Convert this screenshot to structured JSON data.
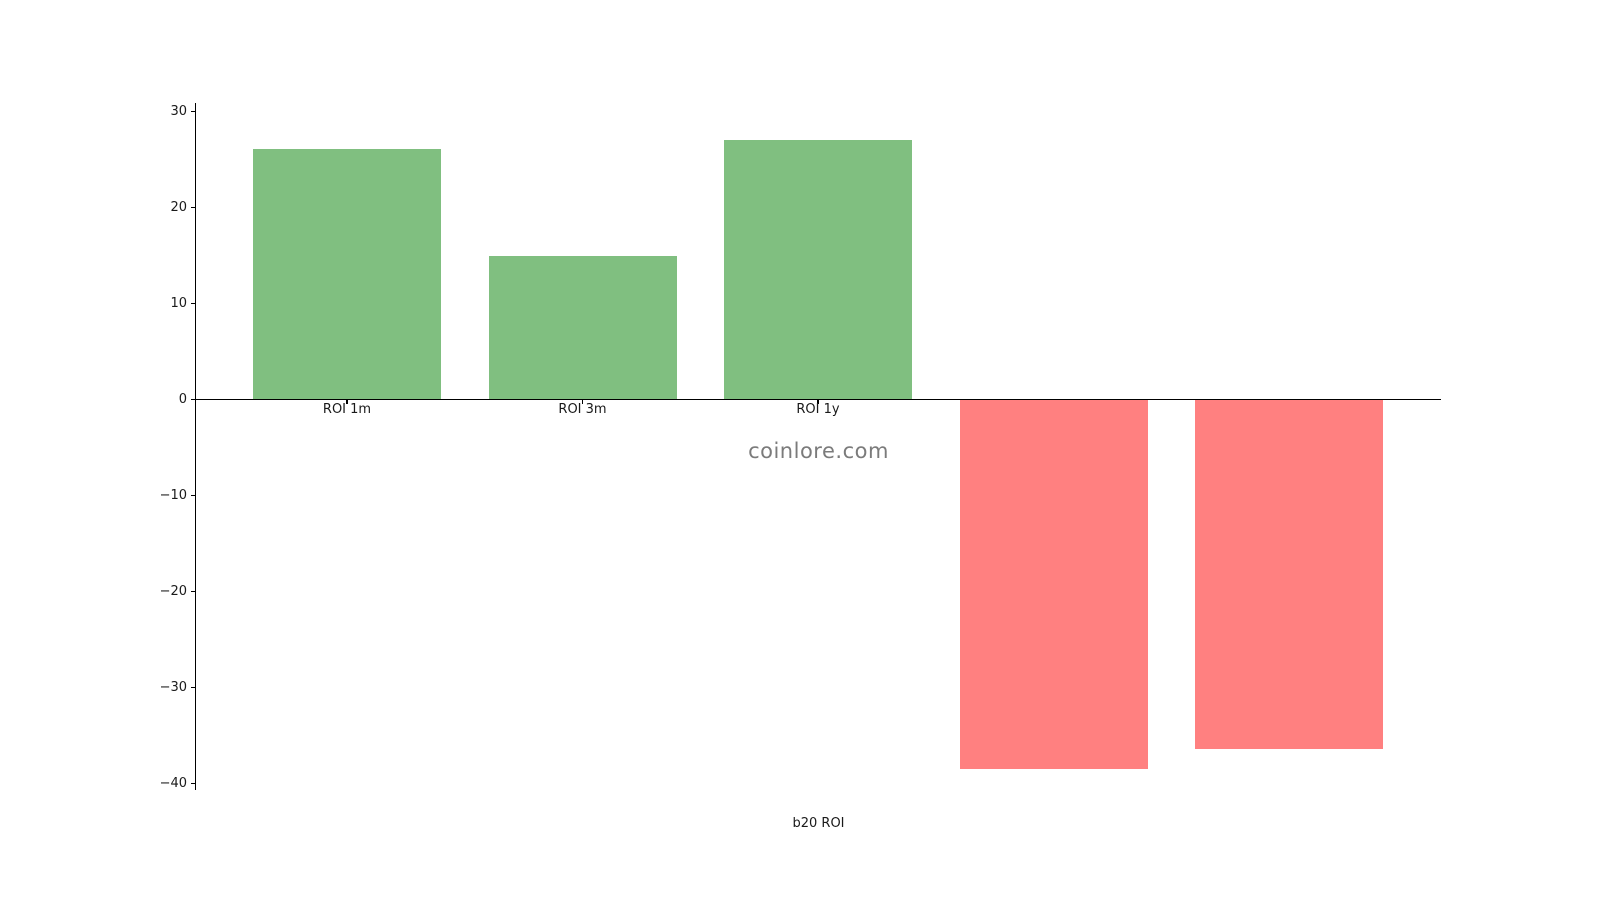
{
  "chart_data": {
    "type": "bar",
    "title": "",
    "xlabel": "b20 ROI",
    "ylabel": "",
    "categories": [
      "ROI 1m",
      "ROI 3m",
      "ROI 1y",
      "",
      ""
    ],
    "values": [
      26.1,
      14.9,
      27.0,
      -38.5,
      -36.4
    ],
    "bar_colors": [
      "#80BF80",
      "#80BF80",
      "#80BF80",
      "#FF8080",
      "#FF8080"
    ],
    "positive_color": "#80BF80",
    "negative_color": "#FF8080",
    "ytick_values": [
      30,
      20,
      10,
      0,
      -10,
      -20,
      -30,
      -40
    ],
    "ytick_labels": [
      "30",
      "20",
      "10",
      "0",
      "−10",
      "−20",
      "−30",
      "−40"
    ],
    "ylim": [
      -42,
      30.5
    ],
    "grid": false,
    "legend_position": "none",
    "watermark": "coinlore.com"
  }
}
